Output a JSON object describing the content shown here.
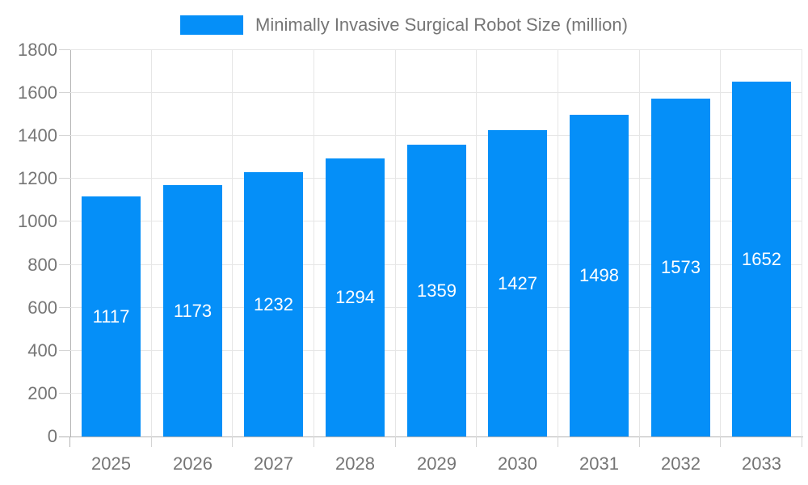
{
  "legend": {
    "label": "Minimally Invasive Surgical Robot Size (million)"
  },
  "chart_data": {
    "type": "bar",
    "title": "Minimally Invasive Surgical Robot Size (million)",
    "categories": [
      "2025",
      "2026",
      "2027",
      "2028",
      "2029",
      "2030",
      "2031",
      "2032",
      "2033"
    ],
    "values": [
      1117,
      1173,
      1232,
      1294,
      1359,
      1427,
      1498,
      1573,
      1652
    ],
    "xlabel": "",
    "ylabel": "",
    "ylim": [
      0,
      1800
    ],
    "ytick_step": 200,
    "yticks": [
      0,
      200,
      400,
      600,
      800,
      1000,
      1200,
      1400,
      1600,
      1800
    ],
    "grid": true,
    "legend_position": "top-center",
    "value_labels": "inside-center",
    "colors": {
      "bar": "#058FF8",
      "value_text": "#ffffff",
      "axis_text": "#757575",
      "gridline": "#e6e6e6",
      "tick": "#d4d4d4",
      "axis_line": "#b3b3b3"
    }
  }
}
